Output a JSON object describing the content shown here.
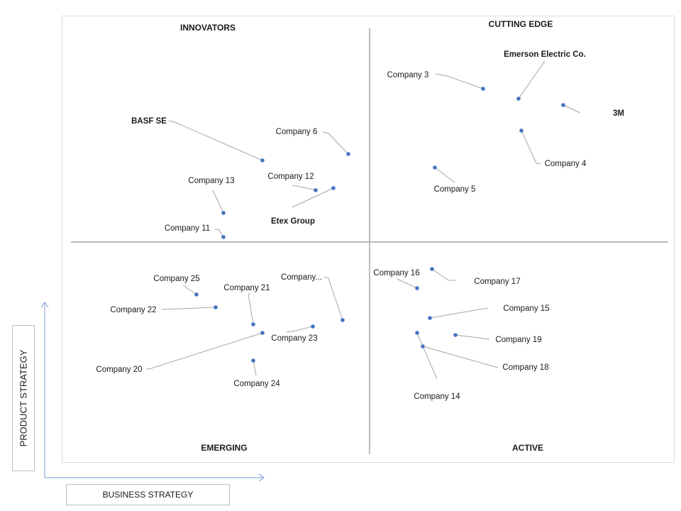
{
  "chart_data": {
    "type": "scatter",
    "title": "",
    "xlabel": "BUSINESS STRATEGY",
    "ylabel": "PRODUCT STRATEGY",
    "quadrants": {
      "top_left": "INNOVATORS",
      "top_right": "CUTTING EDGE",
      "bottom_left": "EMERGING",
      "bottom_right": "ACTIVE"
    },
    "colors": {
      "point": "#4472c4",
      "leader": "#a6a6a6",
      "divider": "#a6a6a6",
      "axis": "#8faadc"
    },
    "points": [
      {
        "name": "Emerson Electric Co.",
        "quadrant": "CUTTING EDGE"
      },
      {
        "name": "Company 3",
        "quadrant": "CUTTING EDGE"
      },
      {
        "name": "3M",
        "quadrant": "CUTTING EDGE"
      },
      {
        "name": "Company 4",
        "quadrant": "CUTTING EDGE"
      },
      {
        "name": "Company 5",
        "quadrant": "CUTTING EDGE"
      },
      {
        "name": "BASF SE",
        "quadrant": "INNOVATORS"
      },
      {
        "name": "Company 6",
        "quadrant": "INNOVATORS"
      },
      {
        "name": "Company 12",
        "quadrant": "INNOVATORS"
      },
      {
        "name": "Etex Group",
        "quadrant": "INNOVATORS"
      },
      {
        "name": "Company 13",
        "quadrant": "INNOVATORS"
      },
      {
        "name": "Company 11",
        "quadrant": "INNOVATORS"
      },
      {
        "name": "Company 25",
        "quadrant": "EMERGING"
      },
      {
        "name": "Company 21",
        "quadrant": "EMERGING"
      },
      {
        "name": "Company 22",
        "quadrant": "EMERGING"
      },
      {
        "name": "Company...",
        "quadrant": "EMERGING"
      },
      {
        "name": "Company 23",
        "quadrant": "EMERGING"
      },
      {
        "name": "Company 20",
        "quadrant": "EMERGING"
      },
      {
        "name": "Company 24",
        "quadrant": "EMERGING"
      },
      {
        "name": "Company 16",
        "quadrant": "ACTIVE"
      },
      {
        "name": "Company 17",
        "quadrant": "ACTIVE"
      },
      {
        "name": "Company 15",
        "quadrant": "ACTIVE"
      },
      {
        "name": "Company 19",
        "quadrant": "ACTIVE"
      },
      {
        "name": "Company 18",
        "quadrant": "ACTIVE"
      },
      {
        "name": "Company 14",
        "quadrant": "ACTIVE"
      }
    ]
  }
}
